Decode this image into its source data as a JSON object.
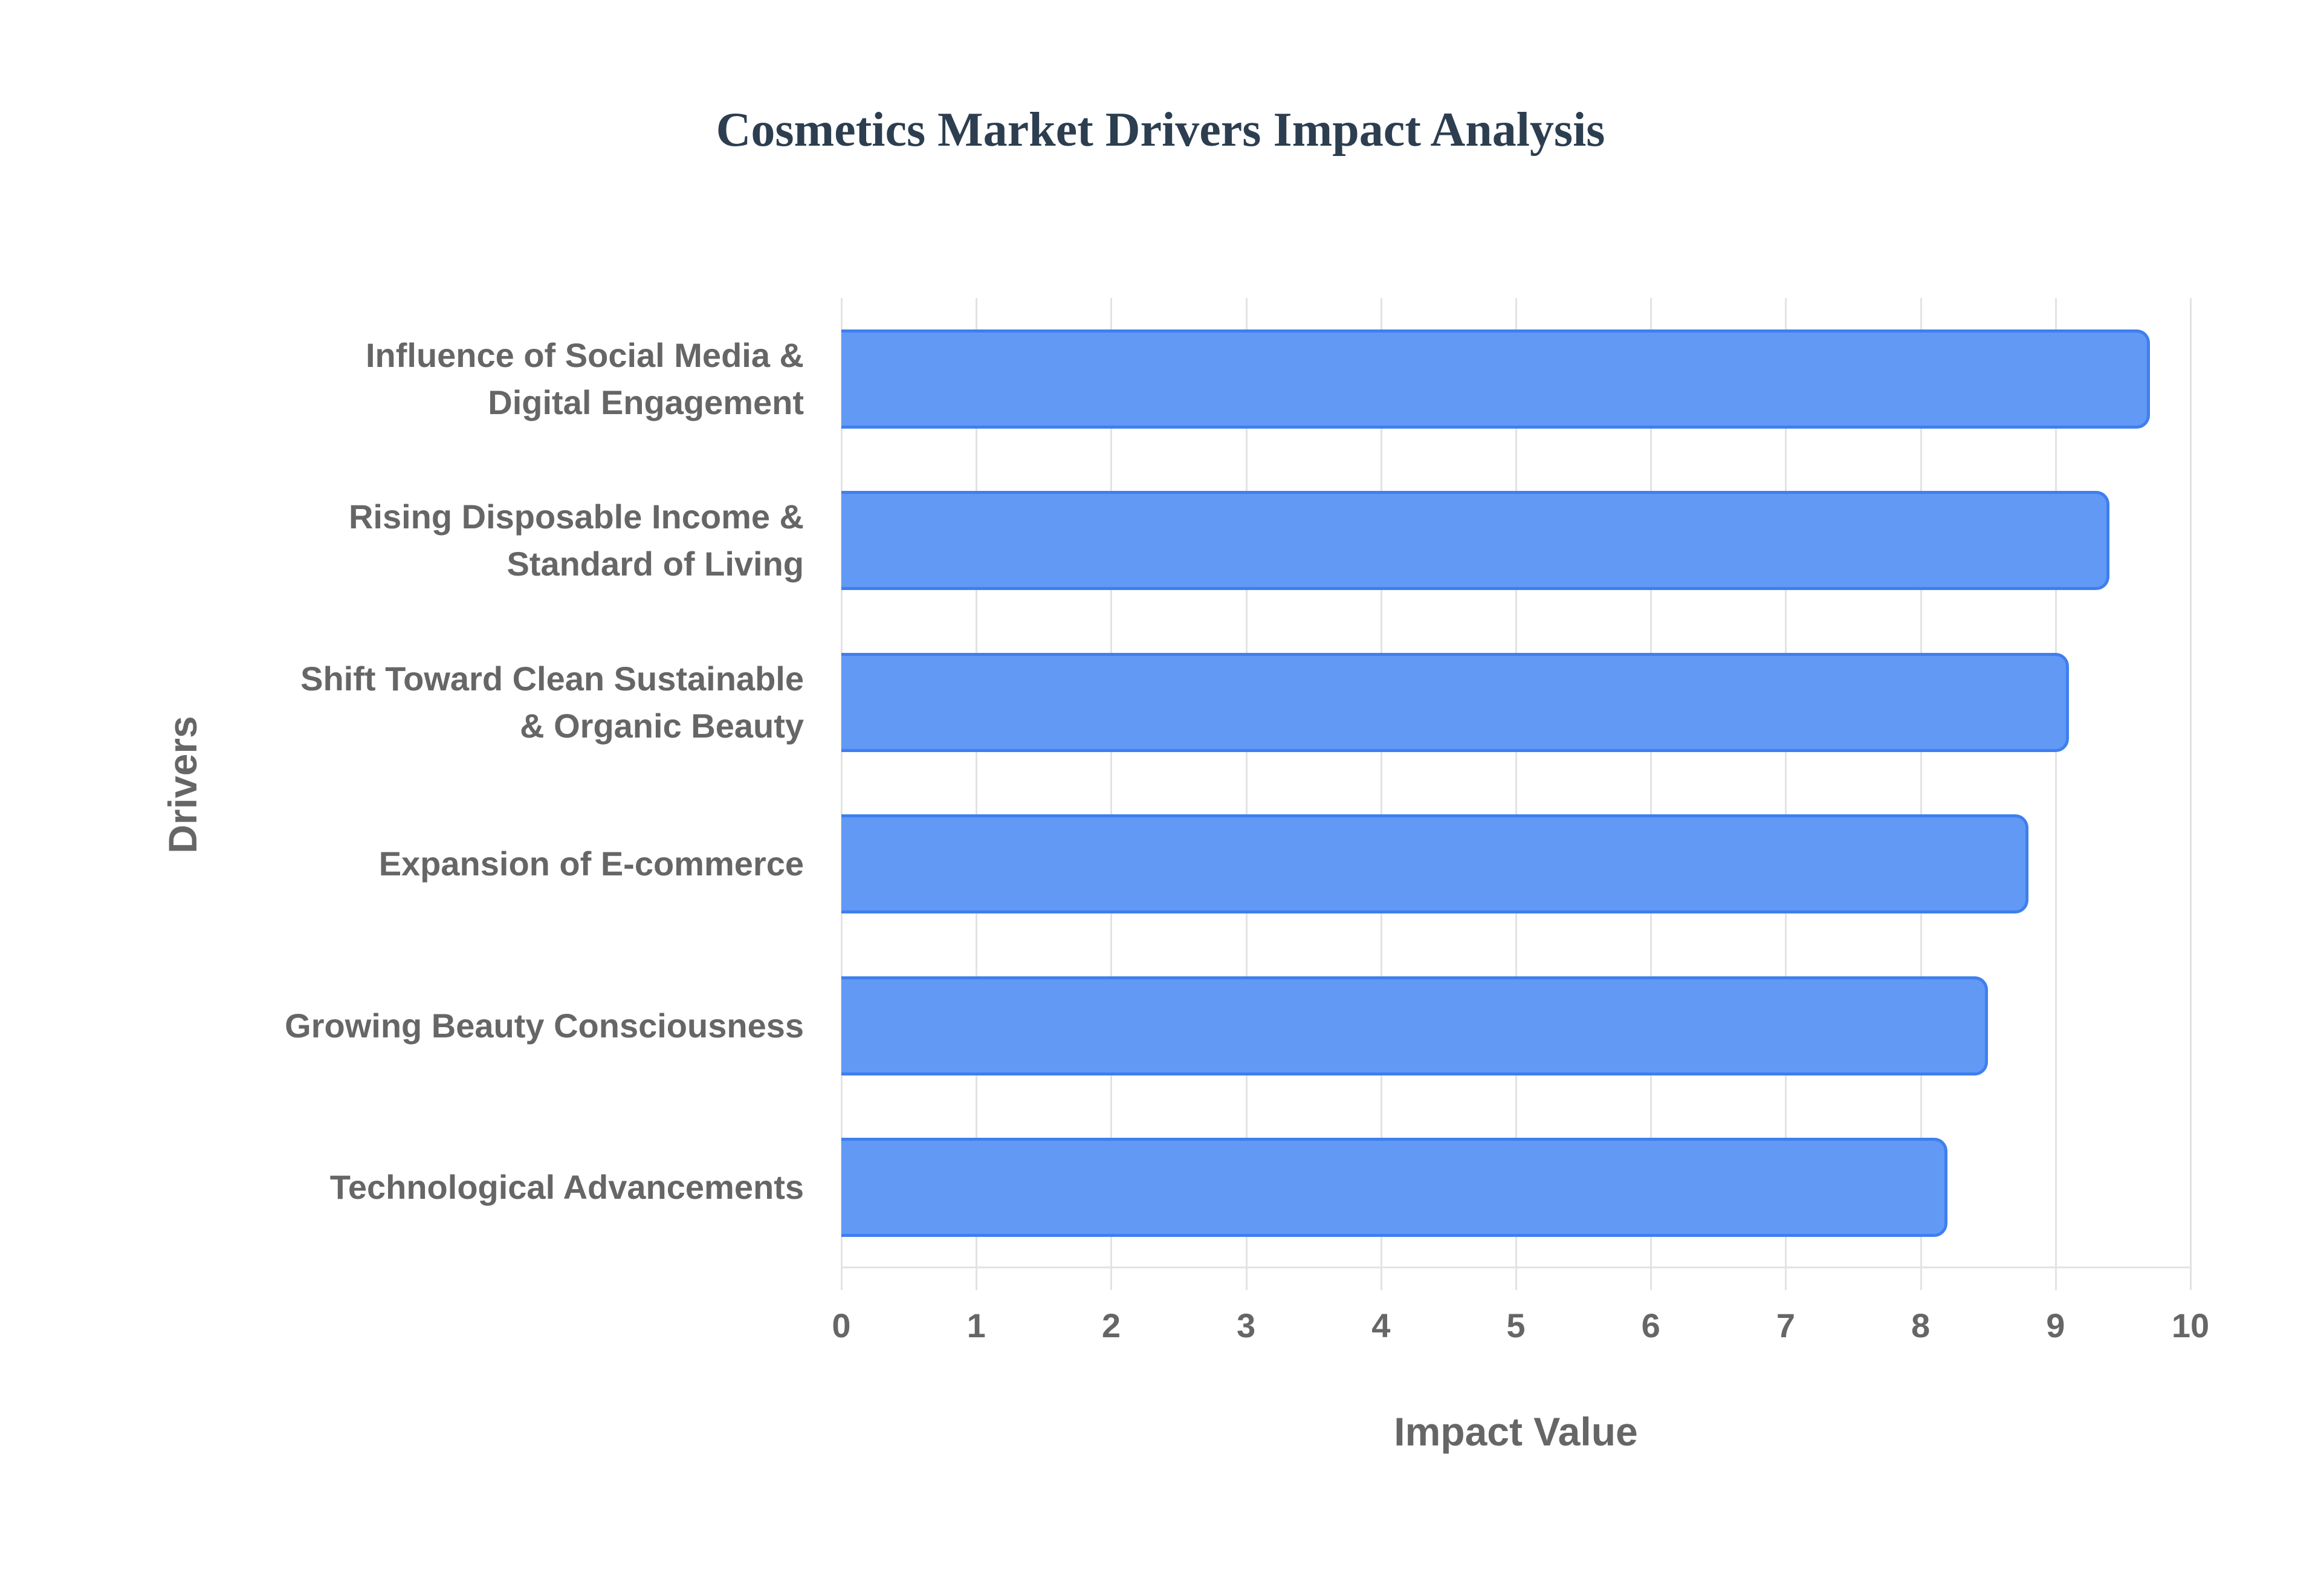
{
  "title": "Cosmetics Market Drivers Impact Analysis",
  "x_axis": {
    "title": "Impact Value",
    "ticks": [
      "0",
      "1",
      "2",
      "3",
      "4",
      "5",
      "6",
      "7",
      "8",
      "9",
      "10"
    ]
  },
  "y_axis": {
    "title": "Drivers"
  },
  "labels": [
    "Influence of Social Media &\nDigital Engagement",
    "Rising Disposable Income &\nStandard of Living",
    "Shift Toward Clean Sustainable\n& Organic Beauty",
    "Expansion of E-commerce",
    "Growing Beauty Consciousness",
    "Technological Advancements"
  ],
  "colors": {
    "bar_fill": "#6199f5",
    "bar_border": "#3f7fef",
    "title": "#2c3e50",
    "text": "#666666",
    "grid": "#e3e3e3"
  },
  "chart_data": {
    "type": "bar",
    "orientation": "horizontal",
    "title": "Cosmetics Market Drivers Impact Analysis",
    "xlabel": "Impact Value",
    "ylabel": "Drivers",
    "xlim": [
      0,
      10
    ],
    "grid": true,
    "legend": "none",
    "categories": [
      "Influence of Social Media & Digital Engagement",
      "Rising Disposable Income & Standard of Living",
      "Shift Toward Clean Sustainable & Organic Beauty",
      "Expansion of E-commerce",
      "Growing Beauty Consciousness",
      "Technological Advancements"
    ],
    "values": [
      9.7,
      9.4,
      9.1,
      8.8,
      8.5,
      8.2
    ]
  }
}
